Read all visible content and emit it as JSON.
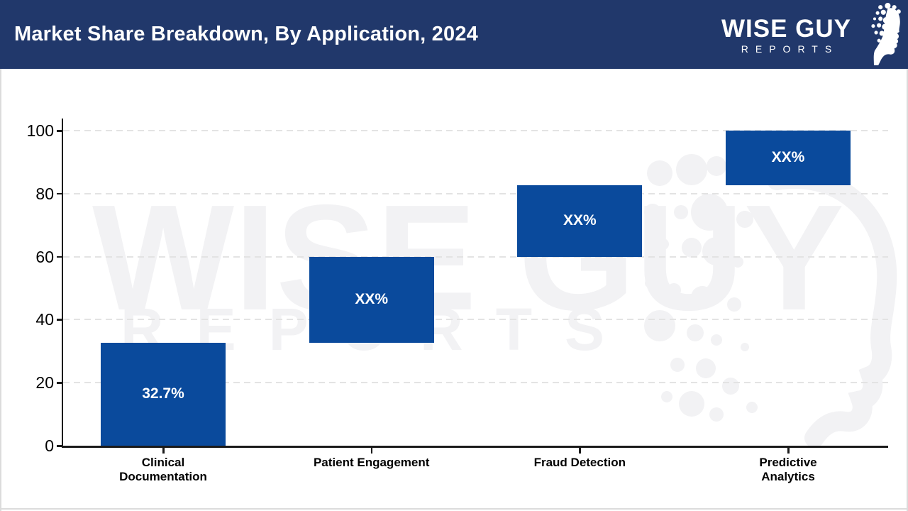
{
  "header": {
    "title": "Market Share Breakdown, By Application, 2024",
    "bg_color": "#21386b",
    "logo": {
      "wordmark": "WISE GUY",
      "subtext": "REPORTS"
    }
  },
  "watermark": {
    "wordmark": "WISE GUY",
    "subtext": "REPORTS"
  },
  "chart_data": {
    "type": "bar",
    "variant": "waterfall",
    "title": "Market Share Breakdown, By Application, 2024",
    "categories": [
      "Clinical\nDocumentation",
      "Patient Engagement",
      "Fraud Detection",
      "Predictive\nAnalytics"
    ],
    "segments": [
      {
        "category": "Clinical Documentation",
        "start": 0,
        "end": 32.7,
        "label": "32.7%"
      },
      {
        "category": "Patient Engagement",
        "start": 32.7,
        "end": 60,
        "label": "XX%"
      },
      {
        "category": "Fraud Detection",
        "start": 60,
        "end": 82.7,
        "label": "XX%"
      },
      {
        "category": "Predictive Analytics",
        "start": 82.7,
        "end": 100,
        "label": "XX%"
      }
    ],
    "ylim": [
      0,
      100
    ],
    "yticks": [
      0,
      20,
      40,
      60,
      80,
      100
    ],
    "bar_color": "#0a4a9c",
    "grid": "horizontal-dashed",
    "legend": "none"
  }
}
